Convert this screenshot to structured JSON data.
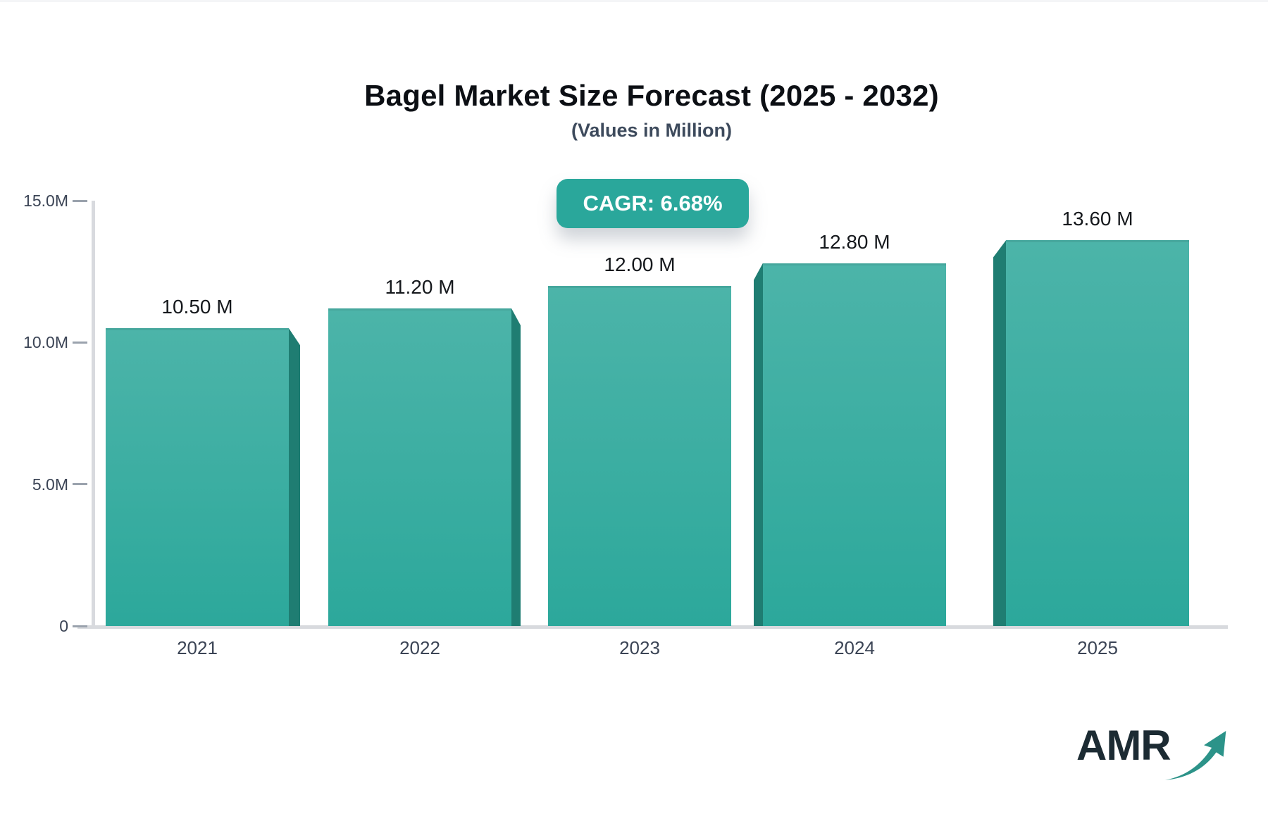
{
  "chart_data": {
    "type": "bar",
    "title": "Bagel Market Size Forecast (2025 - 2032)",
    "subtitle": "(Values in Million)",
    "badge": "CAGR: 6.68%",
    "categories": [
      "2021",
      "2022",
      "2023",
      "2024",
      "2025"
    ],
    "values": [
      10.5,
      11.2,
      12.0,
      12.8,
      13.6
    ],
    "value_labels": [
      "10.50 M",
      "11.20 M",
      "12.00 M",
      "12.80 M",
      "13.60 M"
    ],
    "y_ticks": [
      {
        "label": "15.0M",
        "value": 15
      },
      {
        "label": "10.0M",
        "value": 10
      },
      {
        "label": "5.0M",
        "value": 5
      },
      {
        "label": "0",
        "value": 0
      }
    ],
    "ylim": [
      0,
      15
    ],
    "grid": false,
    "legend": false
  },
  "colors": {
    "bar_top": "#4cb4a9",
    "bar_bottom": "#2ca89b",
    "bar_side": "#1f7d72",
    "badge_bg": "#2aa79b",
    "axis_line": "#d8dade",
    "tick_dash": "#9aa2ad",
    "axis_text": "#3b4455",
    "title_text": "#0c0f14",
    "subtitle_text": "#3d4a5c",
    "value_text": "#15181c",
    "logo_text": "#1c2b33",
    "logo_arrow": "#2c9389"
  },
  "branding": {
    "logo_text": "AMR"
  }
}
